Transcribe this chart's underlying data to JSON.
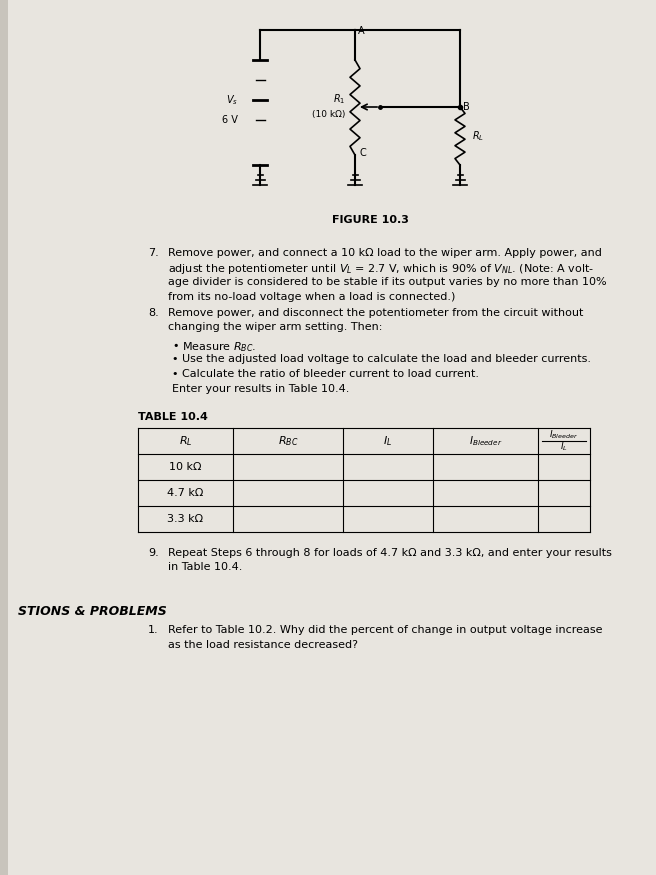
{
  "bg_color": "#c8c4bc",
  "paper_color": "#e8e5df",
  "figure_caption": "FIGURE 10.3",
  "step7_lines": [
    "Remove power, and connect a 10 kΩ load to the wiper arm. Apply power, and",
    "adjust the potentiometer until $V_L$ = 2.7 V, which is 90% of $V_{NL}$. (Note: A volt-",
    "age divider is considered to be stable if its output varies by no more than 10%",
    "from its no-load voltage when a load is connected.)"
  ],
  "step8_lines": [
    "Remove power, and disconnect the potentiometer from the circuit without",
    "changing the wiper arm setting. Then:"
  ],
  "bullets": [
    "Measure $R_{BC}$.",
    "Use the adjusted load voltage to calculate the load and bleeder currents.",
    "Calculate the ratio of bleeder current to load current."
  ],
  "step8_end": "Enter your results in Table 10.4.",
  "table_title": "TABLE 10.4",
  "row_labels": [
    "10 kΩ",
    "4.7 kΩ",
    "3.3 kΩ"
  ],
  "step9_lines": [
    "Repeat Steps 6 through 8 for loads of 4.7 kΩ and 3.3 kΩ, and enter your results",
    "in Table 10.4."
  ],
  "section_header": "STIONS & PROBLEMS",
  "q1_lines": [
    "Refer to Table 10.2. Why did the percent of change in output voltage increase",
    "as the load resistance decreased?"
  ],
  "circuit": {
    "Vs_label": "$V_s$",
    "Vs_value": "6 V",
    "R1_label": "$R_1$",
    "R1_value": "(10 kΩ)",
    "node_A": "A",
    "node_B": "B",
    "node_C": "C",
    "RL_label": "$R_L$"
  }
}
